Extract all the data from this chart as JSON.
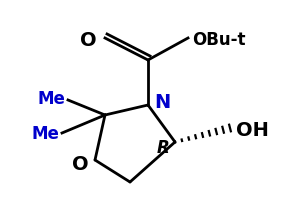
{
  "bg_color": "#ffffff",
  "line_color": "#000000",
  "blue_color": "#0000cc",
  "labels": {
    "N": "N",
    "O_ring": "O",
    "Me_top": "Me",
    "Me_bot": "Me",
    "R_label": "R",
    "OBut": "OBu-t",
    "O_carbonyl": "O",
    "OH": "OH"
  },
  "fontsize": 14,
  "small_fontsize": 12,
  "lw": 2.0
}
